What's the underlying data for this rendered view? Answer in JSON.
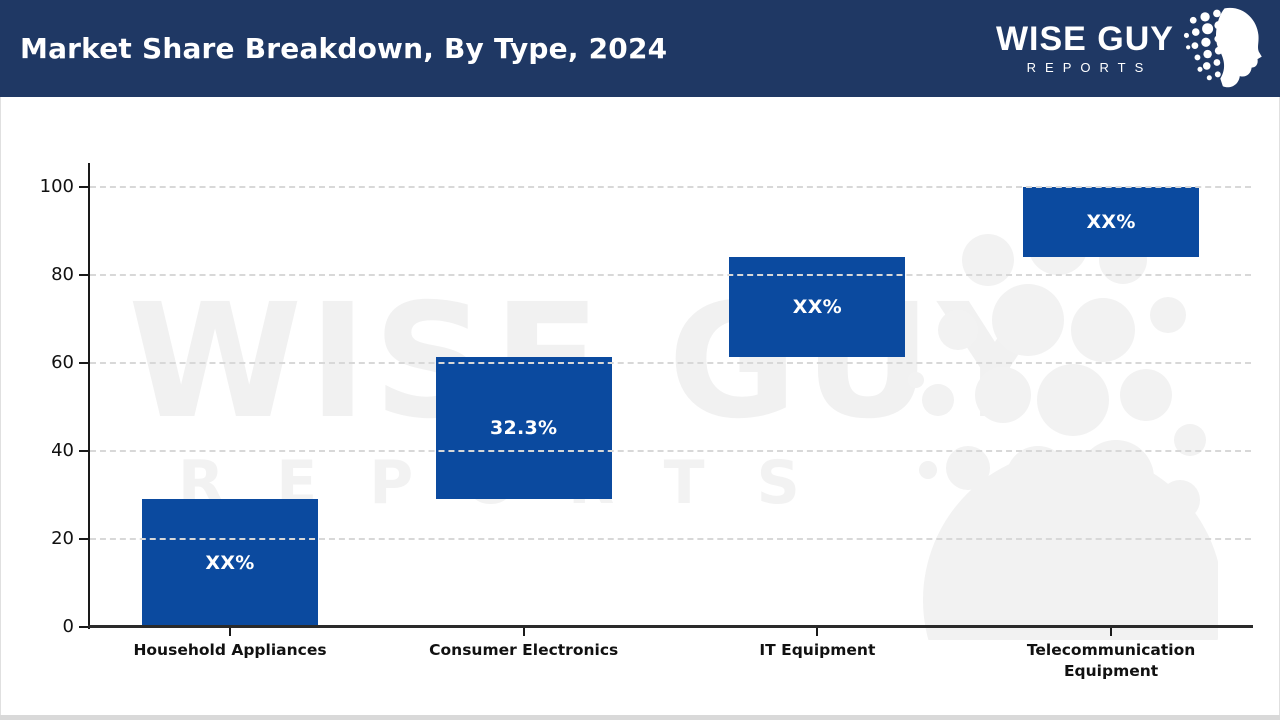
{
  "header": {
    "title": "Market Share Breakdown, By Type, 2024",
    "logo": {
      "line1": "WISE GUY",
      "line2": "REPORTS"
    }
  },
  "watermark": {
    "line1": "WISE GUY",
    "line2": "REPORTS"
  },
  "chart_data": {
    "type": "bar",
    "subtype": "waterfall",
    "title": "Market Share Breakdown, By Type, 2024",
    "categories": [
      "Household Appliances",
      "Consumer Electronics",
      "IT Equipment",
      "Telecommunication Equipment"
    ],
    "segments": [
      {
        "category": "Household Appliances",
        "start": 0,
        "end": 29.1,
        "value": 29.1,
        "label": "XX%"
      },
      {
        "category": "Consumer Electronics",
        "start": 29.1,
        "end": 61.4,
        "value": 32.3,
        "label": "32.3%"
      },
      {
        "category": "IT Equipment",
        "start": 61.4,
        "end": 84.1,
        "value": 22.7,
        "label": "XX%"
      },
      {
        "category": "Telecommunication Equipment",
        "start": 84.1,
        "end": 100,
        "value": 15.9,
        "label": "XX%"
      }
    ],
    "xlabel": "",
    "ylabel": "",
    "ylim": [
      0,
      100
    ],
    "yticks": [
      0,
      20,
      40,
      60,
      80,
      100
    ],
    "grid": "horizontal-dashed",
    "legend": false,
    "colors": {
      "bar": "#0b4a9f",
      "bar_label": "#ffffff",
      "header_bg": "#1f3864",
      "grid": "#d8d8d8",
      "axis": "#1a1a1a",
      "watermark": "#f1f1f1"
    }
  }
}
